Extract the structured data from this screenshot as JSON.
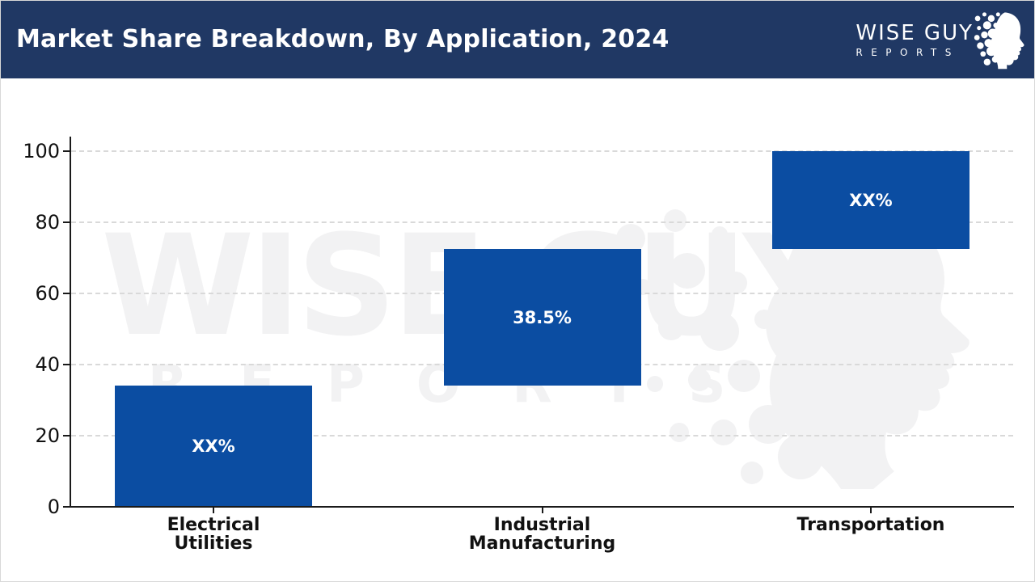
{
  "header": {
    "title": "Market Share Breakdown, By Application, 2024",
    "logo": {
      "wordmark": "WISE GUY",
      "reports": "REPORTS"
    }
  },
  "watermark": {
    "wordmark": "WISE GUY",
    "reports": "REPORTS"
  },
  "chart_data": {
    "type": "bar",
    "subtype": "waterfall",
    "title": "Market Share Breakdown, By Application, 2024",
    "categories": [
      "Electrical Utilities",
      "Industrial Manufacturing",
      "Transportation"
    ],
    "category_labels_wrapped": [
      [
        "Electrical",
        "Utilities"
      ],
      [
        "Industrial",
        "Manufacturing"
      ],
      [
        "Transportation"
      ]
    ],
    "segments": [
      {
        "category": "Electrical Utilities",
        "start": 0,
        "end": 34,
        "size_pct": 34,
        "displayed_label": "XX%"
      },
      {
        "category": "Industrial Manufacturing",
        "start": 34,
        "end": 72.5,
        "size_pct": 38.5,
        "displayed_label": "38.5%"
      },
      {
        "category": "Transportation",
        "start": 72.5,
        "end": 100,
        "size_pct": 27.5,
        "displayed_label": "XX%"
      }
    ],
    "xlabel": "",
    "ylabel": "",
    "ylim": [
      0,
      104
    ],
    "yticks": [
      0,
      20,
      40,
      60,
      80,
      100
    ],
    "grid": "horizontal-dashed",
    "legend": "none",
    "colors": {
      "bar": "#0b4da2",
      "header_bg": "#203864",
      "grid": "#d9d9d9",
      "axis": "#1a1a1a",
      "bar_label": "#ffffff",
      "tick_label": "#111111",
      "watermark": "#f2f2f3"
    }
  }
}
